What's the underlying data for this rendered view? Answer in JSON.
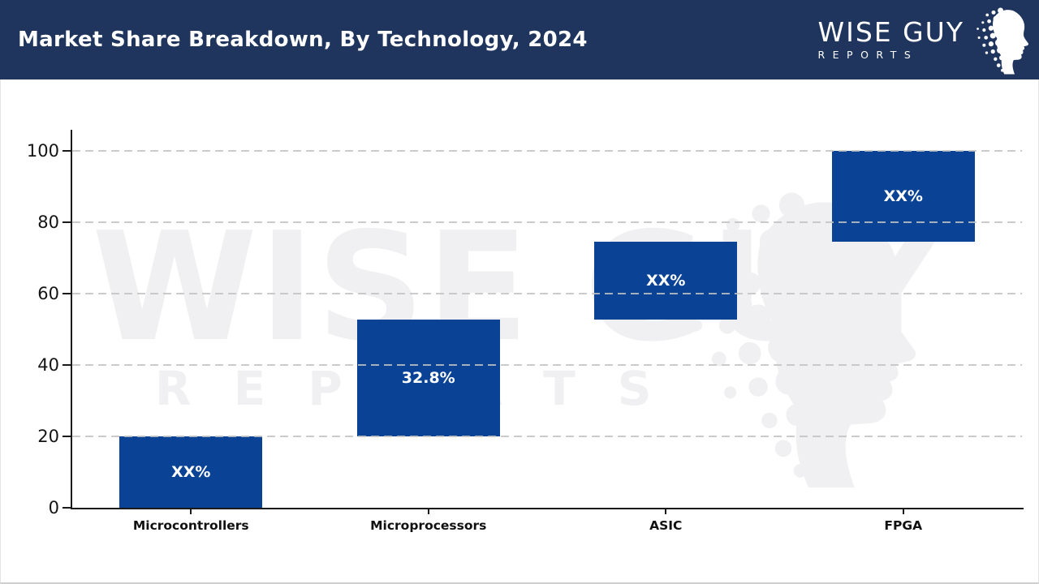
{
  "header": {
    "title": "Market Share Breakdown, By Technology, 2024",
    "logo": {
      "line1": "WISE GUY",
      "line2": "REPORTS"
    },
    "bg_color": "#1f355e",
    "text_color": "#ffffff"
  },
  "watermark": {
    "line1": "WISE GUY",
    "line2": "REPORTS"
  },
  "chart_data": {
    "type": "bar",
    "subtype": "waterfall",
    "title": "Market Share Breakdown, By Technology, 2024",
    "categories": [
      "Microcontrollers",
      "Microprocessors",
      "ASIC",
      "FPGA"
    ],
    "bars": [
      {
        "category": "Microcontrollers",
        "start": 0,
        "end": 20,
        "label": "XX%"
      },
      {
        "category": "Microprocessors",
        "start": 20,
        "end": 52.8,
        "label": "32.8%"
      },
      {
        "category": "ASIC",
        "start": 52.8,
        "end": 74.5,
        "label": "XX%"
      },
      {
        "category": "FPGA",
        "start": 74.5,
        "end": 100,
        "label": "XX%"
      }
    ],
    "yticks": [
      0,
      20,
      40,
      60,
      80,
      100
    ],
    "ylim": [
      0,
      106
    ],
    "xlabel": "",
    "ylabel": "",
    "grid": "horizontal-dashed",
    "legend": "none",
    "bar_color": "#0a4396",
    "bar_label_color": "#ffffff",
    "grid_color": "#c2c2c2",
    "axis_color": "#1a1a1a"
  }
}
